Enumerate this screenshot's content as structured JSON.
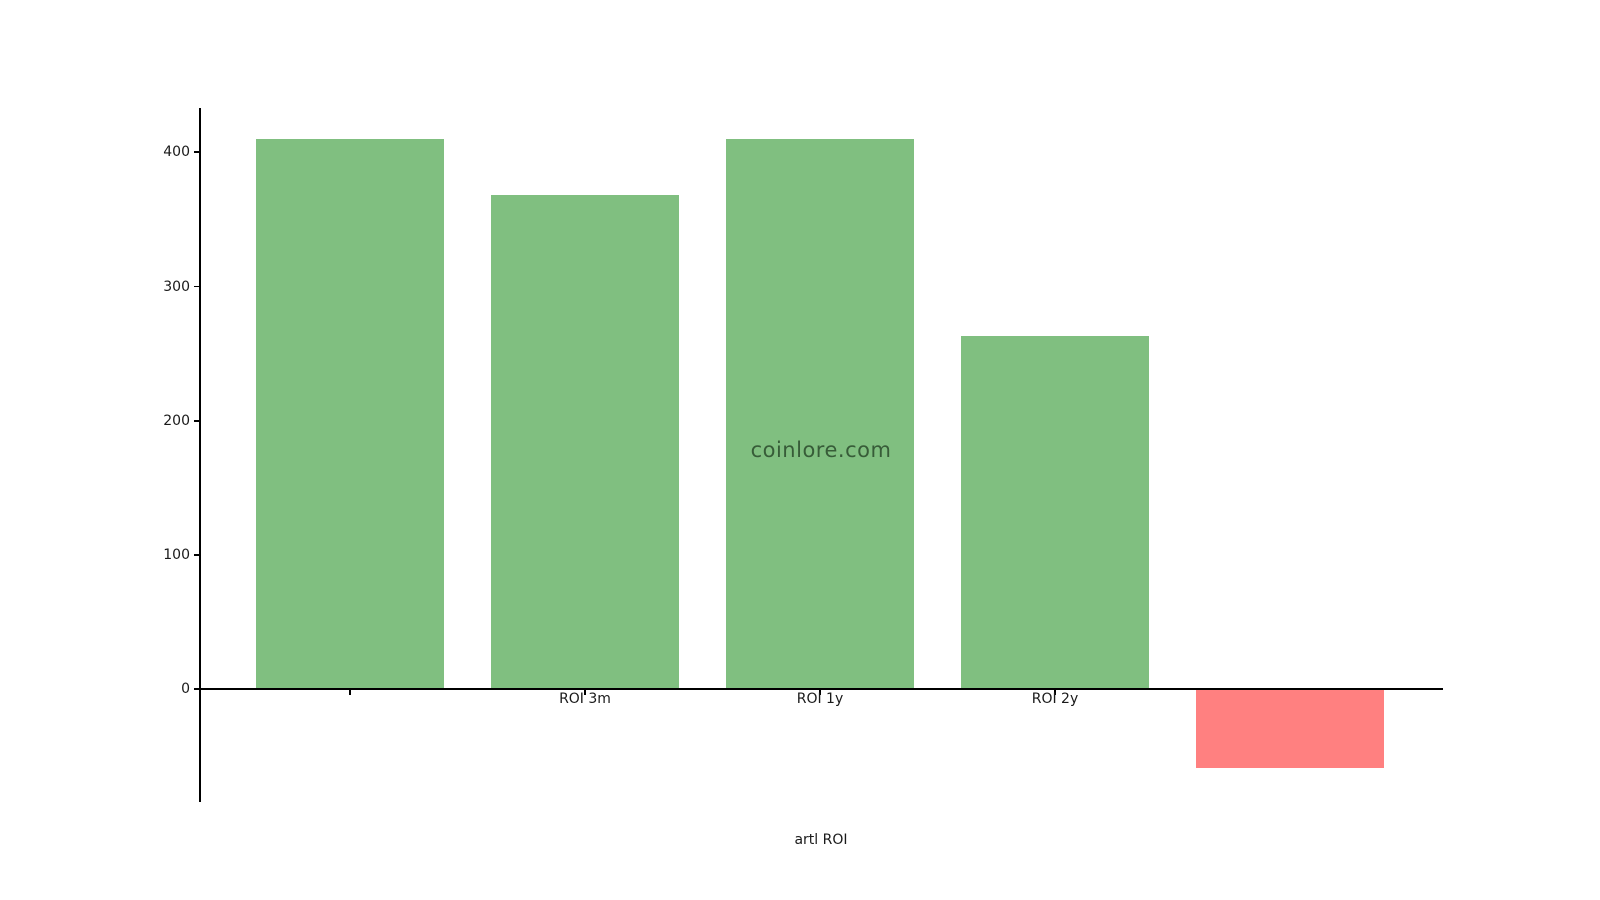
{
  "page": {
    "background_color": "#ffffff"
  },
  "watermark": {
    "text": "coinlore.com"
  },
  "chart_data": {
    "type": "bar",
    "title": "",
    "xlabel": "artl ROI",
    "ylabel": "",
    "categories": [
      "",
      "ROI 3m",
      "ROI 1y",
      "ROI 2y",
      ""
    ],
    "values": [
      410,
      368,
      410,
      263,
      -59
    ],
    "yticks": [
      0,
      100,
      200,
      300,
      400
    ],
    "ylim": [
      -84,
      433
    ],
    "grid": false,
    "legend": false,
    "colors": {
      "positive_bar": "#80bf80",
      "negative_bar": "#ff8080",
      "axis": "#000000",
      "tick_label": "#1a1a1a"
    }
  }
}
